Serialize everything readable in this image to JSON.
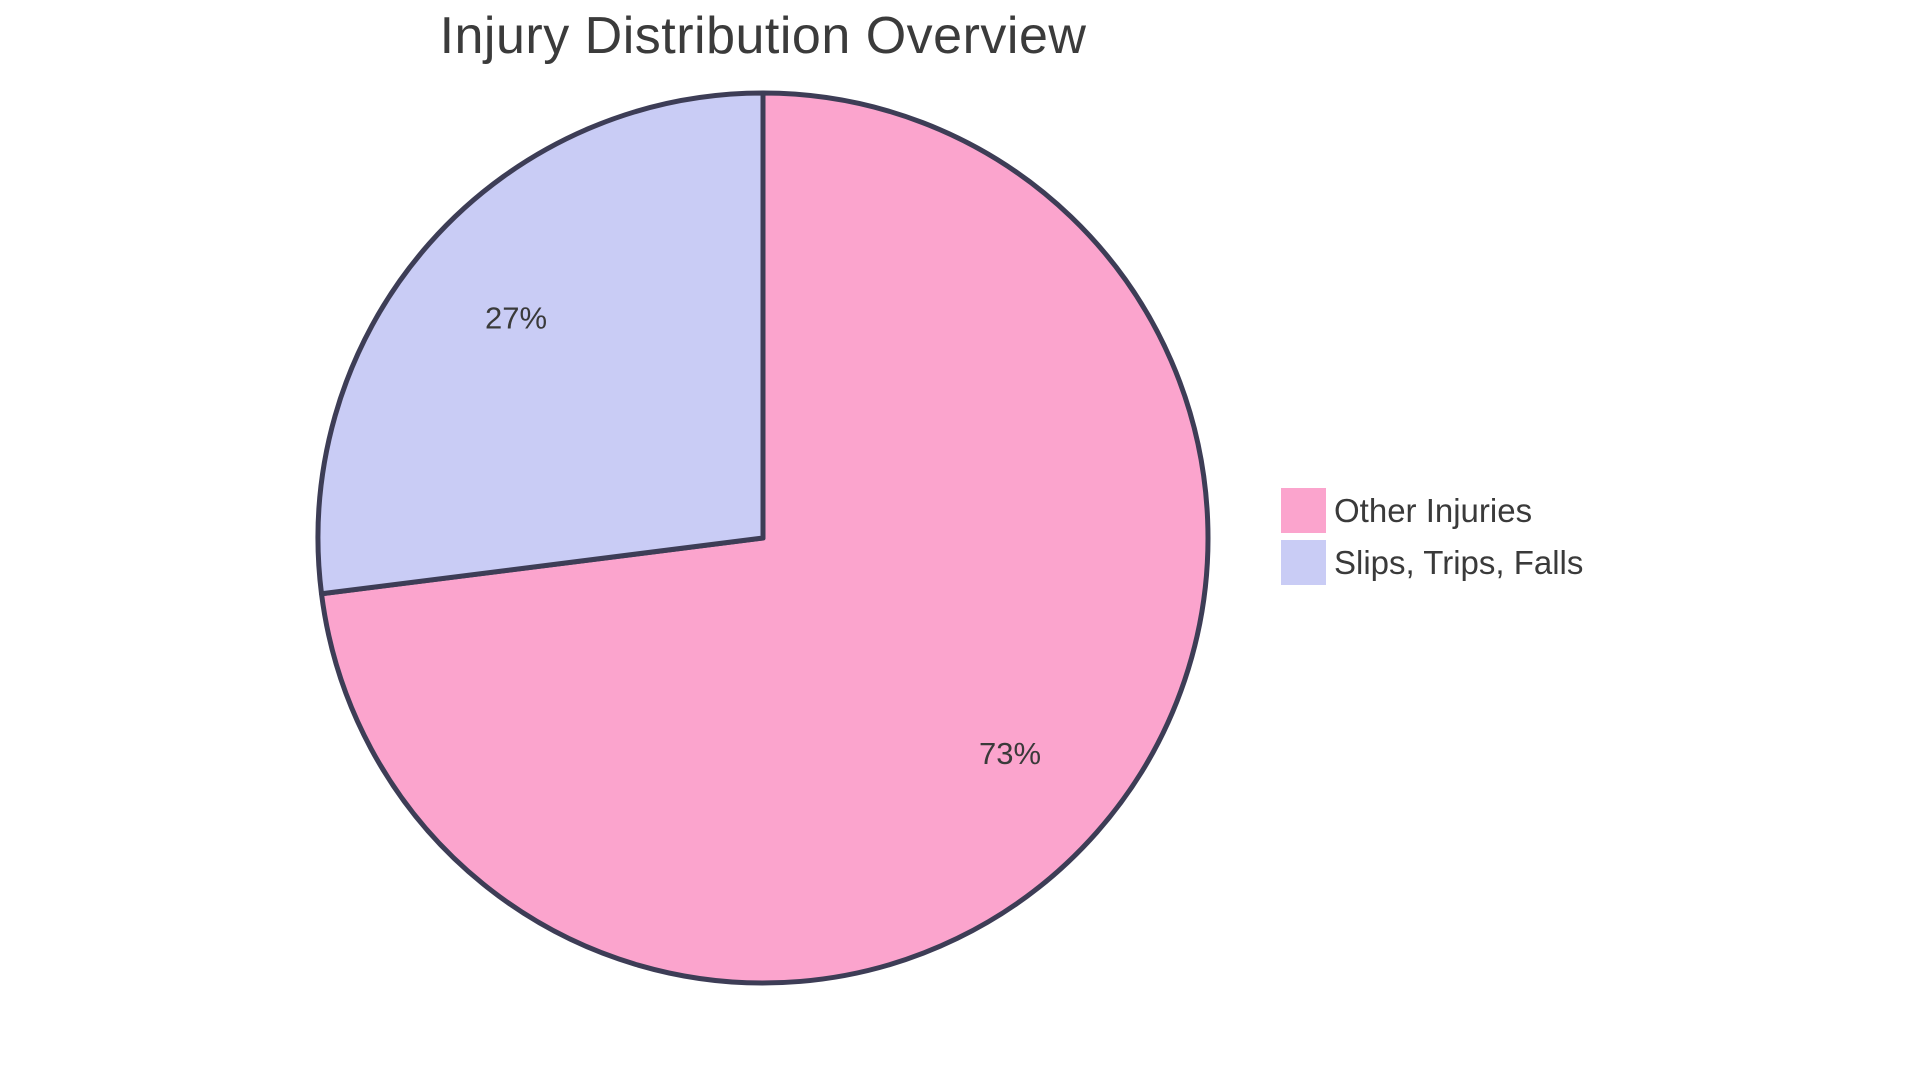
{
  "chart_data": {
    "type": "pie",
    "title": "Injury Distribution Overview",
    "labels": [
      "Other Injuries",
      "Slips, Trips, Falls"
    ],
    "values": [
      73,
      27
    ],
    "value_labels": [
      "73%",
      "27%"
    ],
    "colors": [
      "#FBA4CD",
      "#C9CCF5"
    ],
    "slice_border_color": "#3D3D56",
    "text_color": "#3A3A3A",
    "legend_position": "right",
    "start_angle_deg": -90,
    "direction": "clockwise",
    "label_radius_fraction": 0.74,
    "background_color": "#FFFFFF"
  }
}
